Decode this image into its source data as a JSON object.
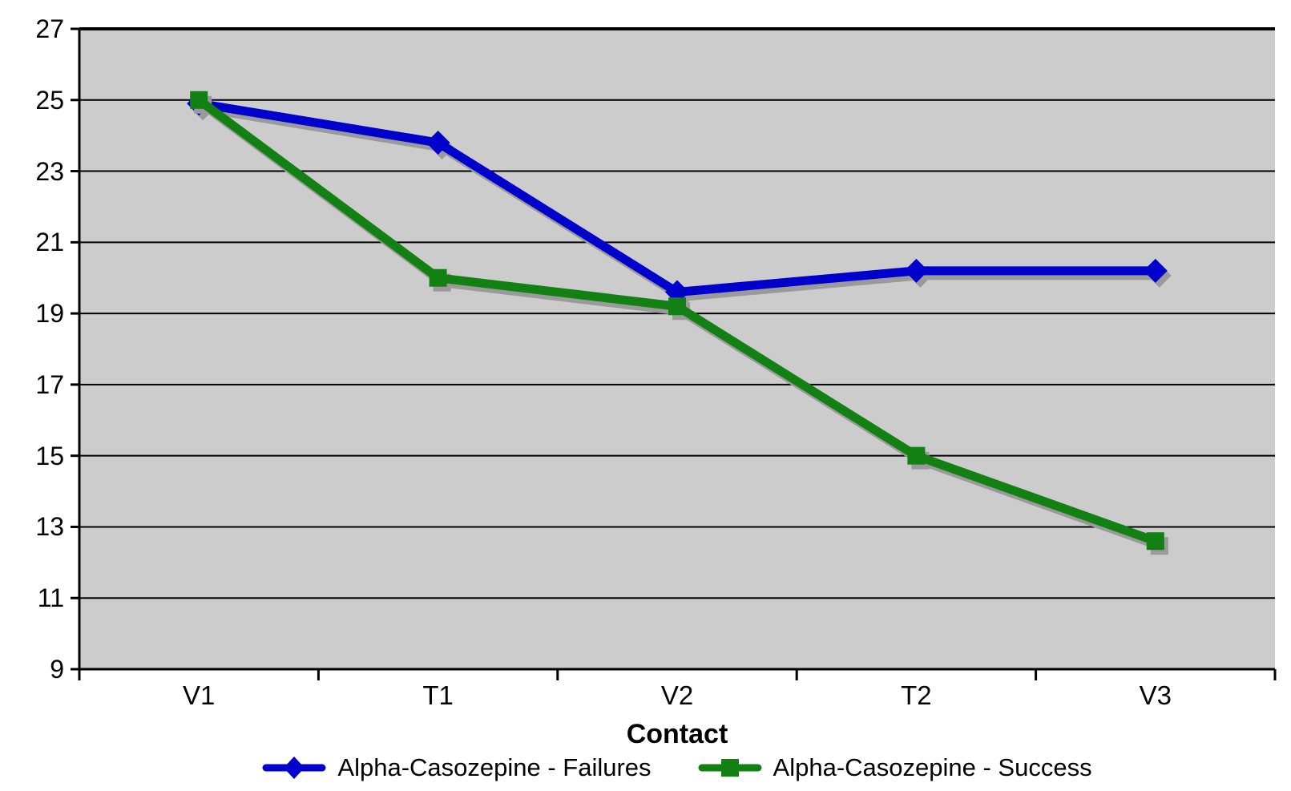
{
  "chart_data": {
    "type": "line",
    "title": "",
    "xlabel": "Contact",
    "ylabel": "",
    "categories": [
      "V1",
      "T1",
      "V2",
      "T2",
      "V3"
    ],
    "series": [
      {
        "name": "Alpha-Casozepine - Failures",
        "color": "#0000CC",
        "marker": "diamond",
        "values": [
          24.9,
          23.8,
          19.6,
          20.2,
          20.2
        ]
      },
      {
        "name": "Alpha-Casozepine - Success",
        "color": "#128012",
        "marker": "square",
        "values": [
          25.0,
          20.0,
          19.2,
          15.0,
          12.6
        ]
      }
    ],
    "ylim": [
      9,
      27
    ],
    "ytick_step": 2,
    "ytick_labels": [
      "9",
      "11",
      "13",
      "15",
      "17",
      "19",
      "21",
      "23",
      "25",
      "27"
    ],
    "grid": "horizontal",
    "gridline_color": "#000000",
    "plot_background": "#CCCCCC",
    "page_background": "#FFFFFF",
    "shadow_color": "#9A9A9A",
    "legend_position": "bottom-center"
  }
}
